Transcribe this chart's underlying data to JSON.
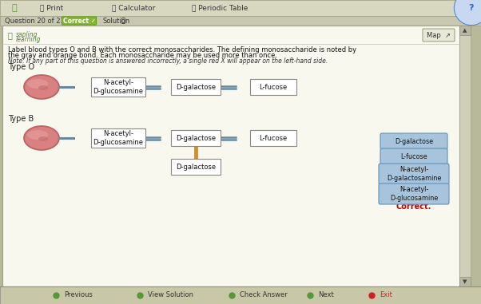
{
  "bg_outer": "#b8b89a",
  "bg_toolbar": "#d8d8c0",
  "bg_content": "#f8f8ee",
  "bg_question_bar": "#c8c8b0",
  "question_text_line1": "Label blood types O and B with the correct monosaccharides. The defining monosaccharide is noted by",
  "question_text_line2": "the gray and orange bond. Each monosaccharide may be used more than once.",
  "note_text": "Note: If any part of this question is answered incorrectly, a single red X will appear on the left-hand side.",
  "type_o_label": "Type O",
  "type_b_label": "Type B",
  "correct_text": "Correct.",
  "correct_color": "#cc0000",
  "answer_box_bg": "#a8c4dc",
  "answer_box_border": "#6090b8",
  "box_bg": "#ffffff",
  "box_border": "#888888",
  "rbc_fill": "#d98080",
  "rbc_fill2": "#e8a0a0",
  "rbc_edge": "#b86060",
  "rbc_center": "#c06868",
  "line_color_gray": "#6888a0",
  "line_color_orange": "#d49020",
  "bottom_bar_bg": "#c8c8a8",
  "nav_items": [
    "Previous",
    "View Solution",
    "Check Answer",
    "Next",
    "Exit"
  ],
  "correct_bar_color": "#88b830",
  "correct_bar_border": "#60a010",
  "scrollbar_bg": "#d0d0b8",
  "scrollbar_btn": "#b8b8a0"
}
